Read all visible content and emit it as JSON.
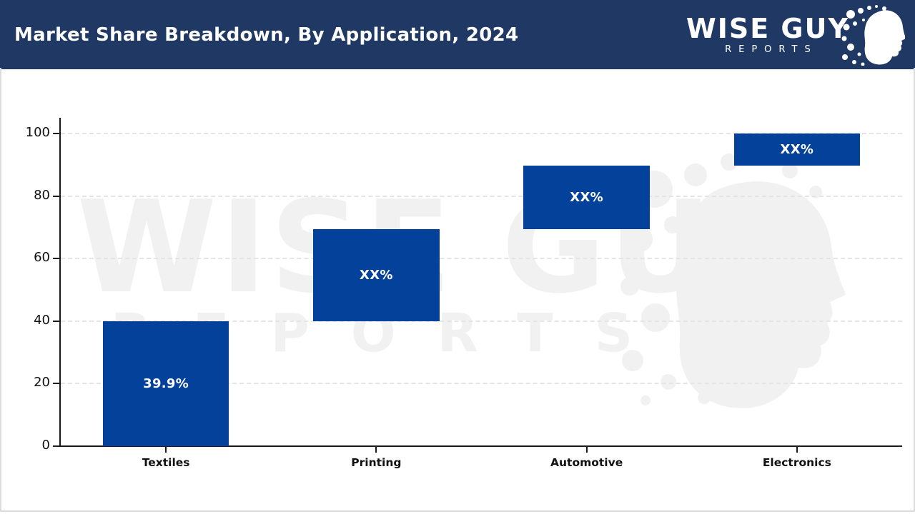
{
  "header": {
    "title": "Market Share Breakdown, By Application, 2024",
    "background_color": "#1f3864",
    "logo": {
      "line1": "WISE GUY",
      "line2": "REPORTS"
    }
  },
  "watermark": {
    "line1": "WISE GUY",
    "line2": "REPORTS"
  },
  "chart_data": {
    "type": "bar",
    "subtype": "waterfall",
    "title": "Market Share Breakdown, By Application, 2024",
    "categories": [
      "Textiles",
      "Printing",
      "Automotive",
      "Electronics"
    ],
    "series": [
      {
        "name": "Market Share %",
        "values": [
          39.9,
          29.4,
          20.4,
          10.3
        ]
      }
    ],
    "segments": [
      {
        "category": "Textiles",
        "start": 0,
        "end": 39.9,
        "label": "39.9%"
      },
      {
        "category": "Printing",
        "start": 39.9,
        "end": 69.3,
        "label": "XX%"
      },
      {
        "category": "Automotive",
        "start": 69.3,
        "end": 89.7,
        "label": "XX%"
      },
      {
        "category": "Electronics",
        "start": 89.7,
        "end": 100,
        "label": "XX%"
      }
    ],
    "xlabel": "",
    "ylabel": "",
    "ylim": [
      0,
      105
    ],
    "yticks": [
      0,
      20,
      40,
      60,
      80,
      100
    ],
    "grid": "horizontal-dashed",
    "legend": "none",
    "bar_color": "#04419a",
    "grid_color": "#e4e4e4",
    "axis_color": "#1a1a1a"
  }
}
